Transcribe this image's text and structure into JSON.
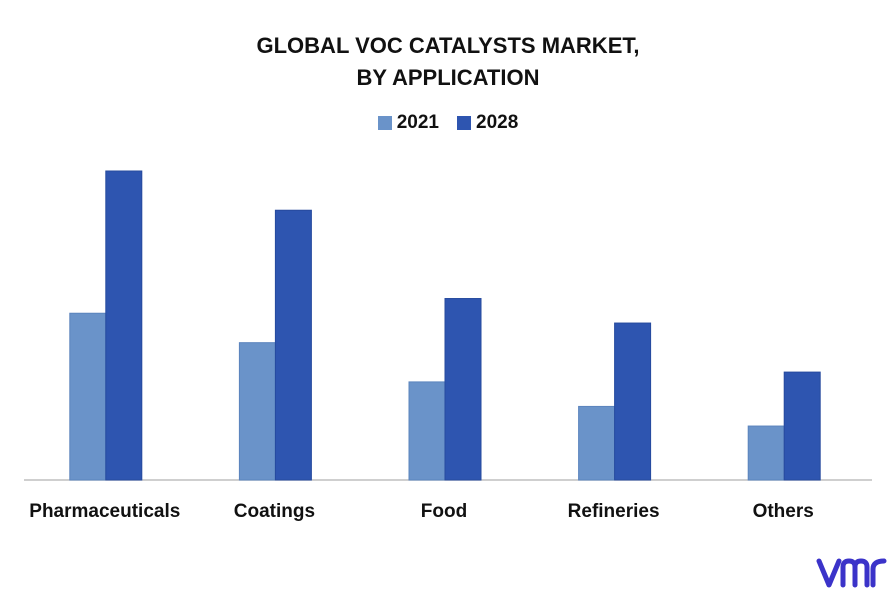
{
  "chart_data": {
    "type": "bar",
    "title_lines": [
      "GLOBAL VOC CATALYSTS MARKET,",
      "BY APPLICATION"
    ],
    "categories": [
      "Pharmaceuticals",
      "Coatings",
      "Food",
      "Refineries",
      "Others"
    ],
    "series": [
      {
        "name": "2021",
        "color": "#6a93c9",
        "values": [
          3.4,
          2.8,
          2.0,
          1.5,
          1.1
        ]
      },
      {
        "name": "2028",
        "color": "#2e55b0",
        "values": [
          6.3,
          5.5,
          3.7,
          3.2,
          2.2
        ]
      }
    ],
    "ylim": [
      0,
      6.3
    ],
    "grid": false,
    "legend_position": "top"
  },
  "logo": {
    "name": "vmr-logo",
    "color": "#3b33c9"
  }
}
